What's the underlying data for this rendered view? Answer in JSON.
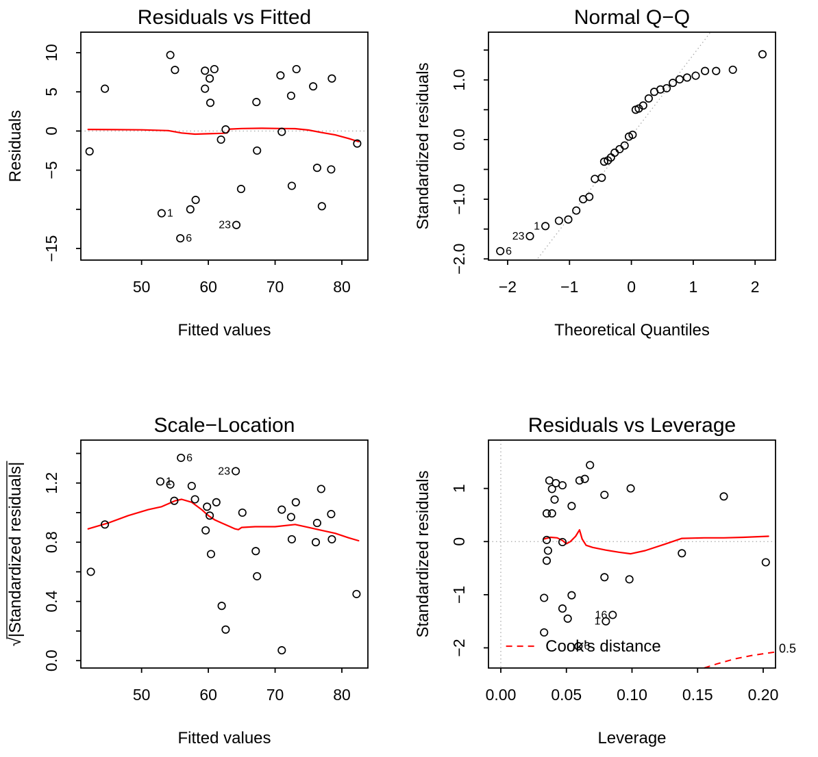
{
  "colors": {
    "point_stroke": "#000000",
    "smoother": "#ff0000",
    "reference_dotted": "#a8a8a8",
    "cooks_line": "#ff0000",
    "cooks_label": "#ff0000",
    "text": "#000000"
  },
  "chart_data": [
    {
      "type": "scatter",
      "title": "Residuals vs Fitted",
      "xlabel": "Fitted values",
      "ylabel": "Residuals",
      "xlim": [
        40.9,
        83.9
      ],
      "ylim": [
        -16.48,
        12.62
      ],
      "xticks": {
        "values": [
          50,
          60,
          70,
          80
        ],
        "labels": [
          "50",
          "60",
          "70",
          "80"
        ]
      },
      "yticks": {
        "values": [
          -15,
          -10,
          -5,
          0,
          5,
          10
        ],
        "labels": [
          "−15",
          "",
          "−5",
          "0",
          "5",
          "10"
        ]
      },
      "grid": false,
      "hline0_dotted": true,
      "smoother": [
        [
          42,
          0.2
        ],
        [
          46,
          0.18
        ],
        [
          50,
          0.15
        ],
        [
          54,
          0.05
        ],
        [
          56,
          -0.25
        ],
        [
          58,
          -0.4
        ],
        [
          60,
          -0.35
        ],
        [
          62,
          -0.3
        ],
        [
          62.8,
          -0.25
        ],
        [
          63.2,
          0.25
        ],
        [
          65,
          0.32
        ],
        [
          68,
          0.35
        ],
        [
          71,
          0.32
        ],
        [
          73,
          0.3
        ],
        [
          75,
          0.12
        ],
        [
          77,
          -0.2
        ],
        [
          79,
          -0.5
        ],
        [
          81,
          -0.95
        ],
        [
          82.5,
          -1.35
        ]
      ],
      "points": [
        [
          42.2,
          -2.6
        ],
        [
          44.5,
          5.4
        ],
        [
          54.3,
          9.7
        ],
        [
          55.0,
          7.8
        ],
        [
          57.3,
          -10.0
        ],
        [
          58.1,
          -8.8
        ],
        [
          59.5,
          7.7
        ],
        [
          59.5,
          5.4
        ],
        [
          60.2,
          6.7
        ],
        [
          60.3,
          3.6
        ],
        [
          60.9,
          7.9
        ],
        [
          61.9,
          -1.1
        ],
        [
          62.6,
          0.2
        ],
        [
          64.9,
          -7.4
        ],
        [
          67.2,
          3.7
        ],
        [
          67.3,
          -2.5
        ],
        [
          70.8,
          7.1
        ],
        [
          71.0,
          -0.1
        ],
        [
          72.4,
          4.5
        ],
        [
          72.5,
          -7.0
        ],
        [
          73.2,
          7.9
        ],
        [
          75.7,
          5.7
        ],
        [
          76.3,
          -4.7
        ],
        [
          77.0,
          -9.6
        ],
        [
          78.4,
          -4.9
        ],
        [
          78.5,
          6.7
        ],
        [
          82.3,
          -1.6
        ]
      ],
      "labeled_points": [
        {
          "label": "1",
          "x": 53.0,
          "y": -10.5,
          "side": "right"
        },
        {
          "label": "6",
          "x": 55.8,
          "y": -13.7,
          "side": "right"
        },
        {
          "label": "23",
          "x": 64.2,
          "y": -12.0,
          "side": "left"
        }
      ]
    },
    {
      "type": "scatter",
      "title": "Normal Q−Q",
      "xlabel": "Theoretical Quantiles",
      "ylabel": "Standardized residuals",
      "xlim": [
        -2.31,
        2.33
      ],
      "ylim": [
        -2.02,
        1.8
      ],
      "xticks": {
        "values": [
          -2,
          -1,
          0,
          1,
          2
        ],
        "labels": [
          "−2",
          "−1",
          "0",
          "1",
          "2"
        ]
      },
      "yticks": {
        "values": [
          -2,
          -1.5,
          -1,
          -0.5,
          0,
          0.5,
          1,
          1.5
        ],
        "labels": [
          "−2.0",
          "",
          "−1.0",
          "",
          "0.0",
          "",
          "1.0",
          ""
        ]
      },
      "grid": false,
      "ref_line_dotted": {
        "from": [
          -1.51,
          -1.99
        ],
        "to": [
          1.28,
          1.8
        ]
      },
      "points": [
        [
          -1.17,
          -1.36
        ],
        [
          -1.02,
          -1.34
        ],
        [
          -0.89,
          -1.19
        ],
        [
          -0.78,
          -1.0
        ],
        [
          -0.68,
          -0.96
        ],
        [
          -0.59,
          -0.66
        ],
        [
          -0.48,
          -0.64
        ],
        [
          -0.44,
          -0.37
        ],
        [
          -0.38,
          -0.35
        ],
        [
          -0.33,
          -0.3
        ],
        [
          -0.27,
          -0.22
        ],
        [
          -0.19,
          -0.16
        ],
        [
          -0.11,
          -0.1
        ],
        [
          -0.04,
          0.05
        ],
        [
          0.02,
          0.08
        ],
        [
          0.07,
          0.5
        ],
        [
          0.12,
          0.52
        ],
        [
          0.19,
          0.57
        ],
        [
          0.28,
          0.69
        ],
        [
          0.37,
          0.8
        ],
        [
          0.47,
          0.84
        ],
        [
          0.57,
          0.86
        ],
        [
          0.67,
          0.95
        ],
        [
          0.78,
          1.01
        ],
        [
          0.9,
          1.04
        ],
        [
          1.04,
          1.07
        ],
        [
          1.19,
          1.15
        ],
        [
          1.37,
          1.15
        ],
        [
          1.64,
          1.17
        ],
        [
          2.12,
          1.43
        ]
      ],
      "labeled_points": [
        {
          "label": "6",
          "x": -2.12,
          "y": -1.87,
          "side": "right"
        },
        {
          "label": "23",
          "x": -1.64,
          "y": -1.62,
          "side": "left"
        },
        {
          "label": "1",
          "x": -1.39,
          "y": -1.45,
          "side": "left"
        }
      ]
    },
    {
      "type": "scatter",
      "title": "Scale−Location",
      "xlabel": "Fitted values",
      "ylabel": "√|Standardized residuals|",
      "ylabel_sqrt_overline": true,
      "xlim": [
        40.9,
        83.9
      ],
      "ylim": [
        -0.05,
        1.49
      ],
      "xticks": {
        "values": [
          50,
          60,
          70,
          80
        ],
        "labels": [
          "50",
          "60",
          "70",
          "80"
        ]
      },
      "yticks": {
        "values": [
          0,
          0.2,
          0.4,
          0.6,
          0.8,
          1.0,
          1.2,
          1.4
        ],
        "labels": [
          "0.0",
          "",
          "0.4",
          "",
          "0.8",
          "",
          "1.2",
          ""
        ]
      },
      "grid": false,
      "smoother": [
        [
          42,
          0.89
        ],
        [
          45,
          0.93
        ],
        [
          48,
          0.98
        ],
        [
          51,
          1.02
        ],
        [
          53,
          1.04
        ],
        [
          55,
          1.08
        ],
        [
          56,
          1.09
        ],
        [
          57.5,
          1.07
        ],
        [
          59,
          1.02
        ],
        [
          60,
          0.98
        ],
        [
          61,
          0.95
        ],
        [
          62,
          0.93
        ],
        [
          63,
          0.91
        ],
        [
          64,
          0.89
        ],
        [
          64.5,
          0.885
        ],
        [
          65,
          0.9
        ],
        [
          67,
          0.905
        ],
        [
          70,
          0.905
        ],
        [
          73,
          0.92
        ],
        [
          75,
          0.9
        ],
        [
          77,
          0.88
        ],
        [
          79,
          0.86
        ],
        [
          81,
          0.83
        ],
        [
          82.5,
          0.81
        ]
      ],
      "points": [
        [
          42.4,
          0.6
        ],
        [
          44.5,
          0.92
        ],
        [
          54.3,
          1.19
        ],
        [
          54.9,
          1.08
        ],
        [
          57.5,
          1.18
        ],
        [
          58.0,
          1.09
        ],
        [
          59.6,
          0.88
        ],
        [
          59.8,
          1.04
        ],
        [
          60.2,
          0.98
        ],
        [
          60.4,
          0.72
        ],
        [
          61.2,
          1.07
        ],
        [
          62.0,
          0.37
        ],
        [
          62.6,
          0.21
        ],
        [
          65.1,
          1.0
        ],
        [
          67.1,
          0.74
        ],
        [
          67.3,
          0.57
        ],
        [
          71.0,
          0.07
        ],
        [
          71.0,
          1.02
        ],
        [
          72.4,
          0.97
        ],
        [
          72.5,
          0.82
        ],
        [
          73.1,
          1.07
        ],
        [
          76.1,
          0.8
        ],
        [
          76.3,
          0.93
        ],
        [
          76.9,
          1.16
        ],
        [
          78.4,
          0.99
        ],
        [
          78.5,
          0.82
        ],
        [
          82.2,
          0.45
        ]
      ],
      "labeled_points": [
        {
          "label": "6",
          "x": 55.9,
          "y": 1.37,
          "side": "right"
        },
        {
          "label": "23",
          "x": 64.1,
          "y": 1.28,
          "side": "left"
        },
        {
          "label": "1",
          "x": 52.8,
          "y": 1.21,
          "side": "right"
        }
      ]
    },
    {
      "type": "scatter",
      "title": "Residuals vs Leverage",
      "xlabel": "Leverage",
      "ylabel": "Standardized residuals",
      "xlim": [
        -0.0094,
        0.2094
      ],
      "ylim": [
        -2.38,
        1.91
      ],
      "xticks": {
        "values": [
          0,
          0.05,
          0.1,
          0.15,
          0.2
        ],
        "labels": [
          "0.00",
          "0.05",
          "0.10",
          "0.15",
          "0.20"
        ]
      },
      "yticks": {
        "values": [
          -2,
          -1,
          0,
          1
        ],
        "labels": [
          "−2",
          "−1",
          "0",
          "1"
        ]
      },
      "grid": false,
      "hline0_dotted": true,
      "vline0_dotted": true,
      "smoother": [
        [
          0.033,
          0.05
        ],
        [
          0.038,
          0.08
        ],
        [
          0.043,
          0.07
        ],
        [
          0.047,
          0.02
        ],
        [
          0.05,
          -0.04
        ],
        [
          0.053,
          0.0
        ],
        [
          0.057,
          0.1
        ],
        [
          0.06,
          0.22
        ],
        [
          0.062,
          0.05
        ],
        [
          0.065,
          -0.07
        ],
        [
          0.07,
          -0.11
        ],
        [
          0.08,
          -0.16
        ],
        [
          0.09,
          -0.2
        ],
        [
          0.099,
          -0.23
        ],
        [
          0.11,
          -0.17
        ],
        [
          0.125,
          -0.05
        ],
        [
          0.138,
          0.06
        ],
        [
          0.155,
          0.07
        ],
        [
          0.17,
          0.07
        ],
        [
          0.185,
          0.08
        ],
        [
          0.204,
          0.1
        ]
      ],
      "cooks_curve": [
        [
          0.155,
          -2.38
        ],
        [
          0.165,
          -2.3
        ],
        [
          0.178,
          -2.21
        ],
        [
          0.192,
          -2.14
        ],
        [
          0.209,
          -2.08
        ]
      ],
      "cooks_label": {
        "text": "0.5",
        "x": 0.212,
        "y": -2.01
      },
      "legend": {
        "dash_x1": 0.004,
        "dash_x2": 0.027,
        "y": -1.97,
        "text": "Cook's distance",
        "text_x": 0.034
      },
      "points": [
        [
          0.037,
          1.15
        ],
        [
          0.042,
          1.1
        ],
        [
          0.047,
          1.06
        ],
        [
          0.039,
          0.99
        ],
        [
          0.041,
          0.79
        ],
        [
          0.06,
          1.15
        ],
        [
          0.064,
          1.18
        ],
        [
          0.054,
          0.67
        ],
        [
          0.079,
          0.88
        ],
        [
          0.099,
          1.0
        ],
        [
          0.035,
          0.53
        ],
        [
          0.039,
          0.53
        ],
        [
          0.035,
          0.03
        ],
        [
          0.047,
          -0.01
        ],
        [
          0.036,
          -0.17
        ],
        [
          0.035,
          -0.36
        ],
        [
          0.079,
          -0.67
        ],
        [
          0.098,
          -0.71
        ],
        [
          0.033,
          -1.06
        ],
        [
          0.054,
          -1.01
        ],
        [
          0.047,
          -1.26
        ],
        [
          0.051,
          -1.45
        ],
        [
          0.033,
          -1.71
        ],
        [
          0.068,
          1.44
        ],
        [
          0.138,
          -0.22
        ],
        [
          0.202,
          -0.39
        ],
        [
          0.17,
          0.85
        ]
      ],
      "labeled_points": [
        {
          "label": "16",
          "x": 0.0853,
          "y": -1.38,
          "side": "left"
        },
        {
          "label": "1",
          "x": 0.0801,
          "y": -1.5,
          "side": "left"
        },
        {
          "label": "6",
          "x": 0.0592,
          "y": -1.97,
          "side": "right"
        }
      ]
    }
  ]
}
